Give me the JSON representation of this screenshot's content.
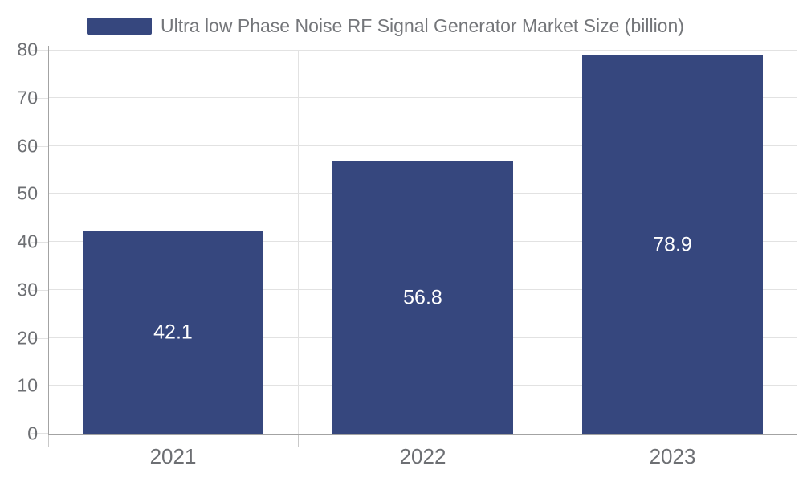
{
  "legend": {
    "label": "Ultra low Phase Noise RF Signal Generator Market Size (billion)"
  },
  "chart_data": {
    "type": "bar",
    "title": "",
    "categories": [
      "2021",
      "2022",
      "2023"
    ],
    "series": [
      {
        "name": "Ultra low Phase Noise RF Signal Generator Market Size (billion)",
        "values": [
          42.1,
          56.8,
          78.9
        ]
      }
    ],
    "data_labels": [
      "42.1",
      "56.8",
      "78.9"
    ],
    "xlabel": "",
    "ylabel": "",
    "ylim": [
      0,
      80
    ],
    "ytick_step": 10,
    "grid": true,
    "legend_position": "top-left",
    "colors": {
      "bar": "#36477e",
      "grid": "#e2e2e2",
      "axis": "#a3a3a3",
      "outer_tick": "#c9c9c9",
      "tick_label": "#6d6f73",
      "legend_text": "#74767a",
      "bar_label": "#ffffff"
    }
  }
}
